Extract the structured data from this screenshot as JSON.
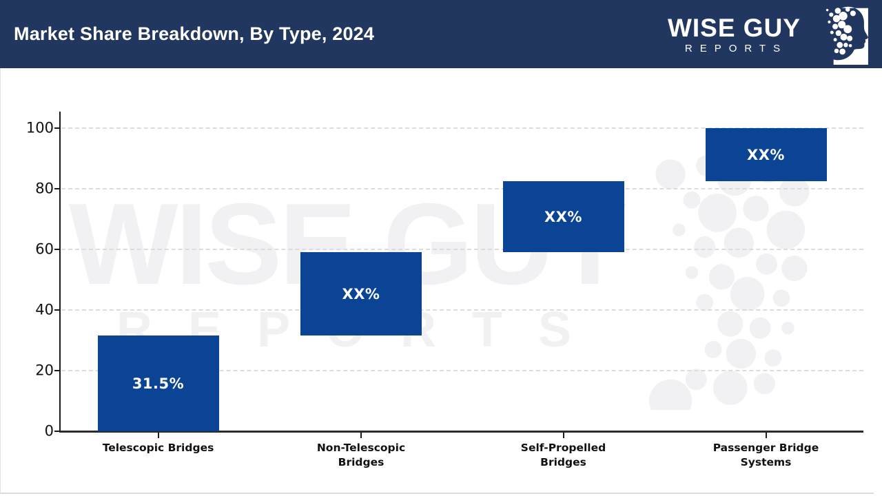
{
  "header": {
    "title": "Market Share Breakdown, By Type, 2024",
    "bg_color": "#21375f",
    "logo": {
      "name": "WISE GUY",
      "sub": "REPORTS"
    }
  },
  "watermark": {
    "line1": "WISE GUY",
    "line2": "REPORTS"
  },
  "chart_data": {
    "type": "bar",
    "subtype": "waterfall",
    "title": "Market Share Breakdown, By Type, 2024",
    "categories": [
      "Telescopic Bridges",
      "Non-Telescopic Bridges",
      "Self-Propelled Bridges",
      "Passenger Bridge Systems"
    ],
    "category_label_lines": [
      [
        "Telescopic Bridges"
      ],
      [
        "Non-Telescopic",
        "Bridges"
      ],
      [
        "Self-Propelled",
        "Bridges"
      ],
      [
        "Passenger Bridge",
        "Systems"
      ]
    ],
    "series": [
      {
        "name": "Market Share %",
        "segments": [
          {
            "category": "Telescopic Bridges",
            "start": 0,
            "end": 31.5,
            "value": 31.5,
            "label": "31.5%"
          },
          {
            "category": "Non-Telescopic Bridges",
            "start": 31.5,
            "end": 59,
            "value": 27.5,
            "label": "XX%"
          },
          {
            "category": "Self-Propelled Bridges",
            "start": 59,
            "end": 82.5,
            "value": 23.5,
            "label": "XX%"
          },
          {
            "category": "Passenger Bridge Systems",
            "start": 82.5,
            "end": 100,
            "value": 17.5,
            "label": "XX%"
          }
        ]
      }
    ],
    "xlabel": "",
    "ylabel": "",
    "ylim": [
      0,
      100
    ],
    "yticks": [
      0,
      20,
      40,
      60,
      80,
      100
    ],
    "grid": "horizontal-dashed",
    "legend": "none",
    "bar_color": "#0b4494",
    "bar_label_color": "#ffffff",
    "axis_color": "#1a1a1a",
    "gridline_color": "#dcdcdc"
  }
}
